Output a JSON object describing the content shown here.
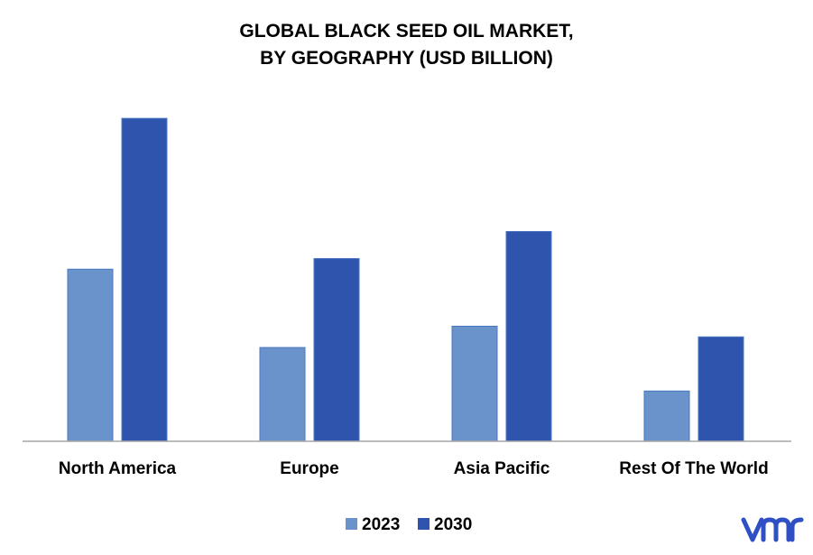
{
  "chart_data": {
    "type": "bar",
    "title_lines": [
      "GLOBAL BLACK SEED OIL MARKET,",
      "BY GEOGRAPHY (USD BILLION)"
    ],
    "categories": [
      "North America",
      "Europe",
      "Asia Pacific",
      "Rest Of The World"
    ],
    "series": [
      {
        "name": "2023",
        "color": "#6a93cb",
        "values": [
          1.78,
          0.97,
          1.19,
          0.52
        ]
      },
      {
        "name": "2030",
        "color": "#2f54ad",
        "values": [
          3.34,
          1.89,
          2.17,
          1.08
        ]
      }
    ],
    "ylim": [
      0,
      3.5
    ],
    "grid": false,
    "legend_position": "bottom-center"
  },
  "logo": {
    "text": "vmr",
    "color": "#2f4fc4"
  }
}
